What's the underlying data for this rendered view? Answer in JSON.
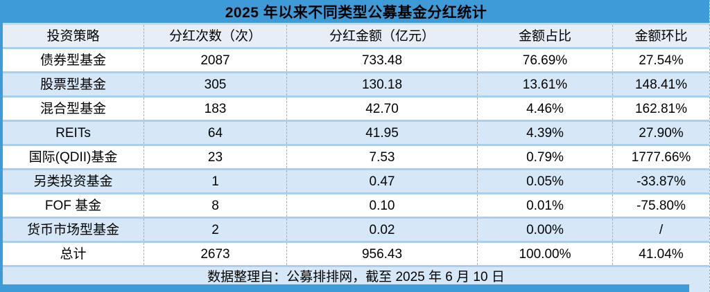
{
  "title": "2025 年以来不同类型公募基金分红统计",
  "columns": [
    "投资策略",
    "分红次数（次）",
    "分红金额（亿元）",
    "金额占比",
    "金额环比"
  ],
  "rows": [
    {
      "strategy": "债券型基金",
      "count": "2087",
      "amount": "733.48",
      "share": "76.69%",
      "mom": "27.54%"
    },
    {
      "strategy": "股票型基金",
      "count": "305",
      "amount": "130.18",
      "share": "13.61%",
      "mom": "148.41%"
    },
    {
      "strategy": "混合型基金",
      "count": "183",
      "amount": "42.70",
      "share": "4.46%",
      "mom": "162.81%"
    },
    {
      "strategy": "REITs",
      "count": "64",
      "amount": "41.95",
      "share": "4.39%",
      "mom": "27.90%"
    },
    {
      "strategy": "国际(QDII)基金",
      "count": "23",
      "amount": "7.53",
      "share": "0.79%",
      "mom": "1777.66%"
    },
    {
      "strategy": "另类投资基金",
      "count": "1",
      "amount": "0.47",
      "share": "0.05%",
      "mom": "-33.87%"
    },
    {
      "strategy": "FOF 基金",
      "count": "8",
      "amount": "0.10",
      "share": "0.01%",
      "mom": "-75.80%"
    },
    {
      "strategy": "货币市场型基金",
      "count": "2",
      "amount": "0.02",
      "share": "0.00%",
      "mom": "/"
    },
    {
      "strategy": "总计",
      "count": "2673",
      "amount": "956.43",
      "share": "100.00%",
      "mom": "41.04%"
    }
  ],
  "footer_note": "数据整理自：公募排排网，截至 2025 年 6 月 10 日",
  "colors": {
    "title_bar": "#3F9BD8",
    "header_row": "#E7EEF6",
    "alt_row": "#D6E8F7",
    "white_row": "#FFFFFF",
    "row_separator": "#A9CEEE",
    "column_separator_dashed": "#ABABAB",
    "bottom_bar": "#3F9BD8",
    "text": "#000000"
  },
  "chart_data": {
    "type": "table",
    "title": "2025 年以来不同类型公募基金分红统计",
    "columns": [
      "投资策略",
      "分红次数（次）",
      "分红金额（亿元）",
      "金额占比",
      "金额环比"
    ],
    "rows": [
      [
        "债券型基金",
        "2087",
        "733.48",
        "76.69%",
        "27.54%"
      ],
      [
        "股票型基金",
        "305",
        "130.18",
        "13.61%",
        "148.41%"
      ],
      [
        "混合型基金",
        "183",
        "42.70",
        "4.46%",
        "162.81%"
      ],
      [
        "REITs",
        "64",
        "41.95",
        "4.39%",
        "27.90%"
      ],
      [
        "国际(QDII)基金",
        "23",
        "7.53",
        "0.79%",
        "1777.66%"
      ],
      [
        "另类投资基金",
        "1",
        "0.47",
        "0.05%",
        "-33.87%"
      ],
      [
        "FOF 基金",
        "8",
        "0.10",
        "0.01%",
        "-75.80%"
      ],
      [
        "货币市场型基金",
        "2",
        "0.02",
        "0.00%",
        "/"
      ],
      [
        "总计",
        "2673",
        "956.43",
        "100.00%",
        "41.04%"
      ]
    ],
    "note": "数据整理自：公募排排网，截至 2025 年 6 月 10 日"
  }
}
